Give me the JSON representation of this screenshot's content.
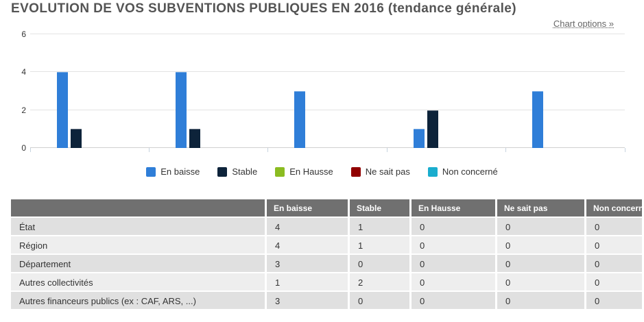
{
  "page": {
    "title": "EVOLUTION DE VOS SUBVENTIONS PUBLIQUES EN 2016 (tendance générale)",
    "chart_options_label": "Chart options »"
  },
  "chart_data": {
    "type": "bar",
    "title": "EVOLUTION DE VOS SUBVENTIONS PUBLIQUES EN 2016 (tendance générale)",
    "categories": [
      "État",
      "Région",
      "Département",
      "Autres collectivités",
      "Autres financeurs publics (ex : CAF, ARS, ...)"
    ],
    "series": [
      {
        "name": "En baisse",
        "color": "#2f7ed8",
        "values": [
          4,
          4,
          3,
          1,
          3
        ]
      },
      {
        "name": "Stable",
        "color": "#0d233a",
        "values": [
          1,
          1,
          0,
          2,
          0
        ]
      },
      {
        "name": "En Hausse",
        "color": "#8bbc21",
        "values": [
          0,
          0,
          0,
          0,
          0
        ]
      },
      {
        "name": "Ne sait pas",
        "color": "#910000",
        "values": [
          0,
          0,
          0,
          0,
          0
        ]
      },
      {
        "name": "Non concerné",
        "color": "#1aadce",
        "values": [
          0,
          0,
          0,
          0,
          0
        ]
      }
    ],
    "xlabel": "",
    "ylabel": "",
    "ylim": [
      0,
      6
    ],
    "yticks": [
      0,
      2,
      4,
      6
    ],
    "grid": true,
    "legend_position": "bottom"
  },
  "table": {
    "headers": [
      "",
      "En baisse",
      "Stable",
      "En Hausse",
      "Ne sait pas",
      "Non concerné"
    ],
    "rows": [
      {
        "label": "État",
        "values": [
          "4",
          "1",
          "0",
          "0",
          "0"
        ]
      },
      {
        "label": "Région",
        "values": [
          "4",
          "1",
          "0",
          "0",
          "0"
        ]
      },
      {
        "label": "Département",
        "values": [
          "3",
          "0",
          "0",
          "0",
          "0"
        ]
      },
      {
        "label": "Autres collectivités",
        "values": [
          "1",
          "2",
          "0",
          "0",
          "0"
        ]
      },
      {
        "label": "Autres financeurs publics (ex : CAF, ARS, ...)",
        "values": [
          "3",
          "0",
          "0",
          "0",
          "0"
        ]
      }
    ]
  }
}
